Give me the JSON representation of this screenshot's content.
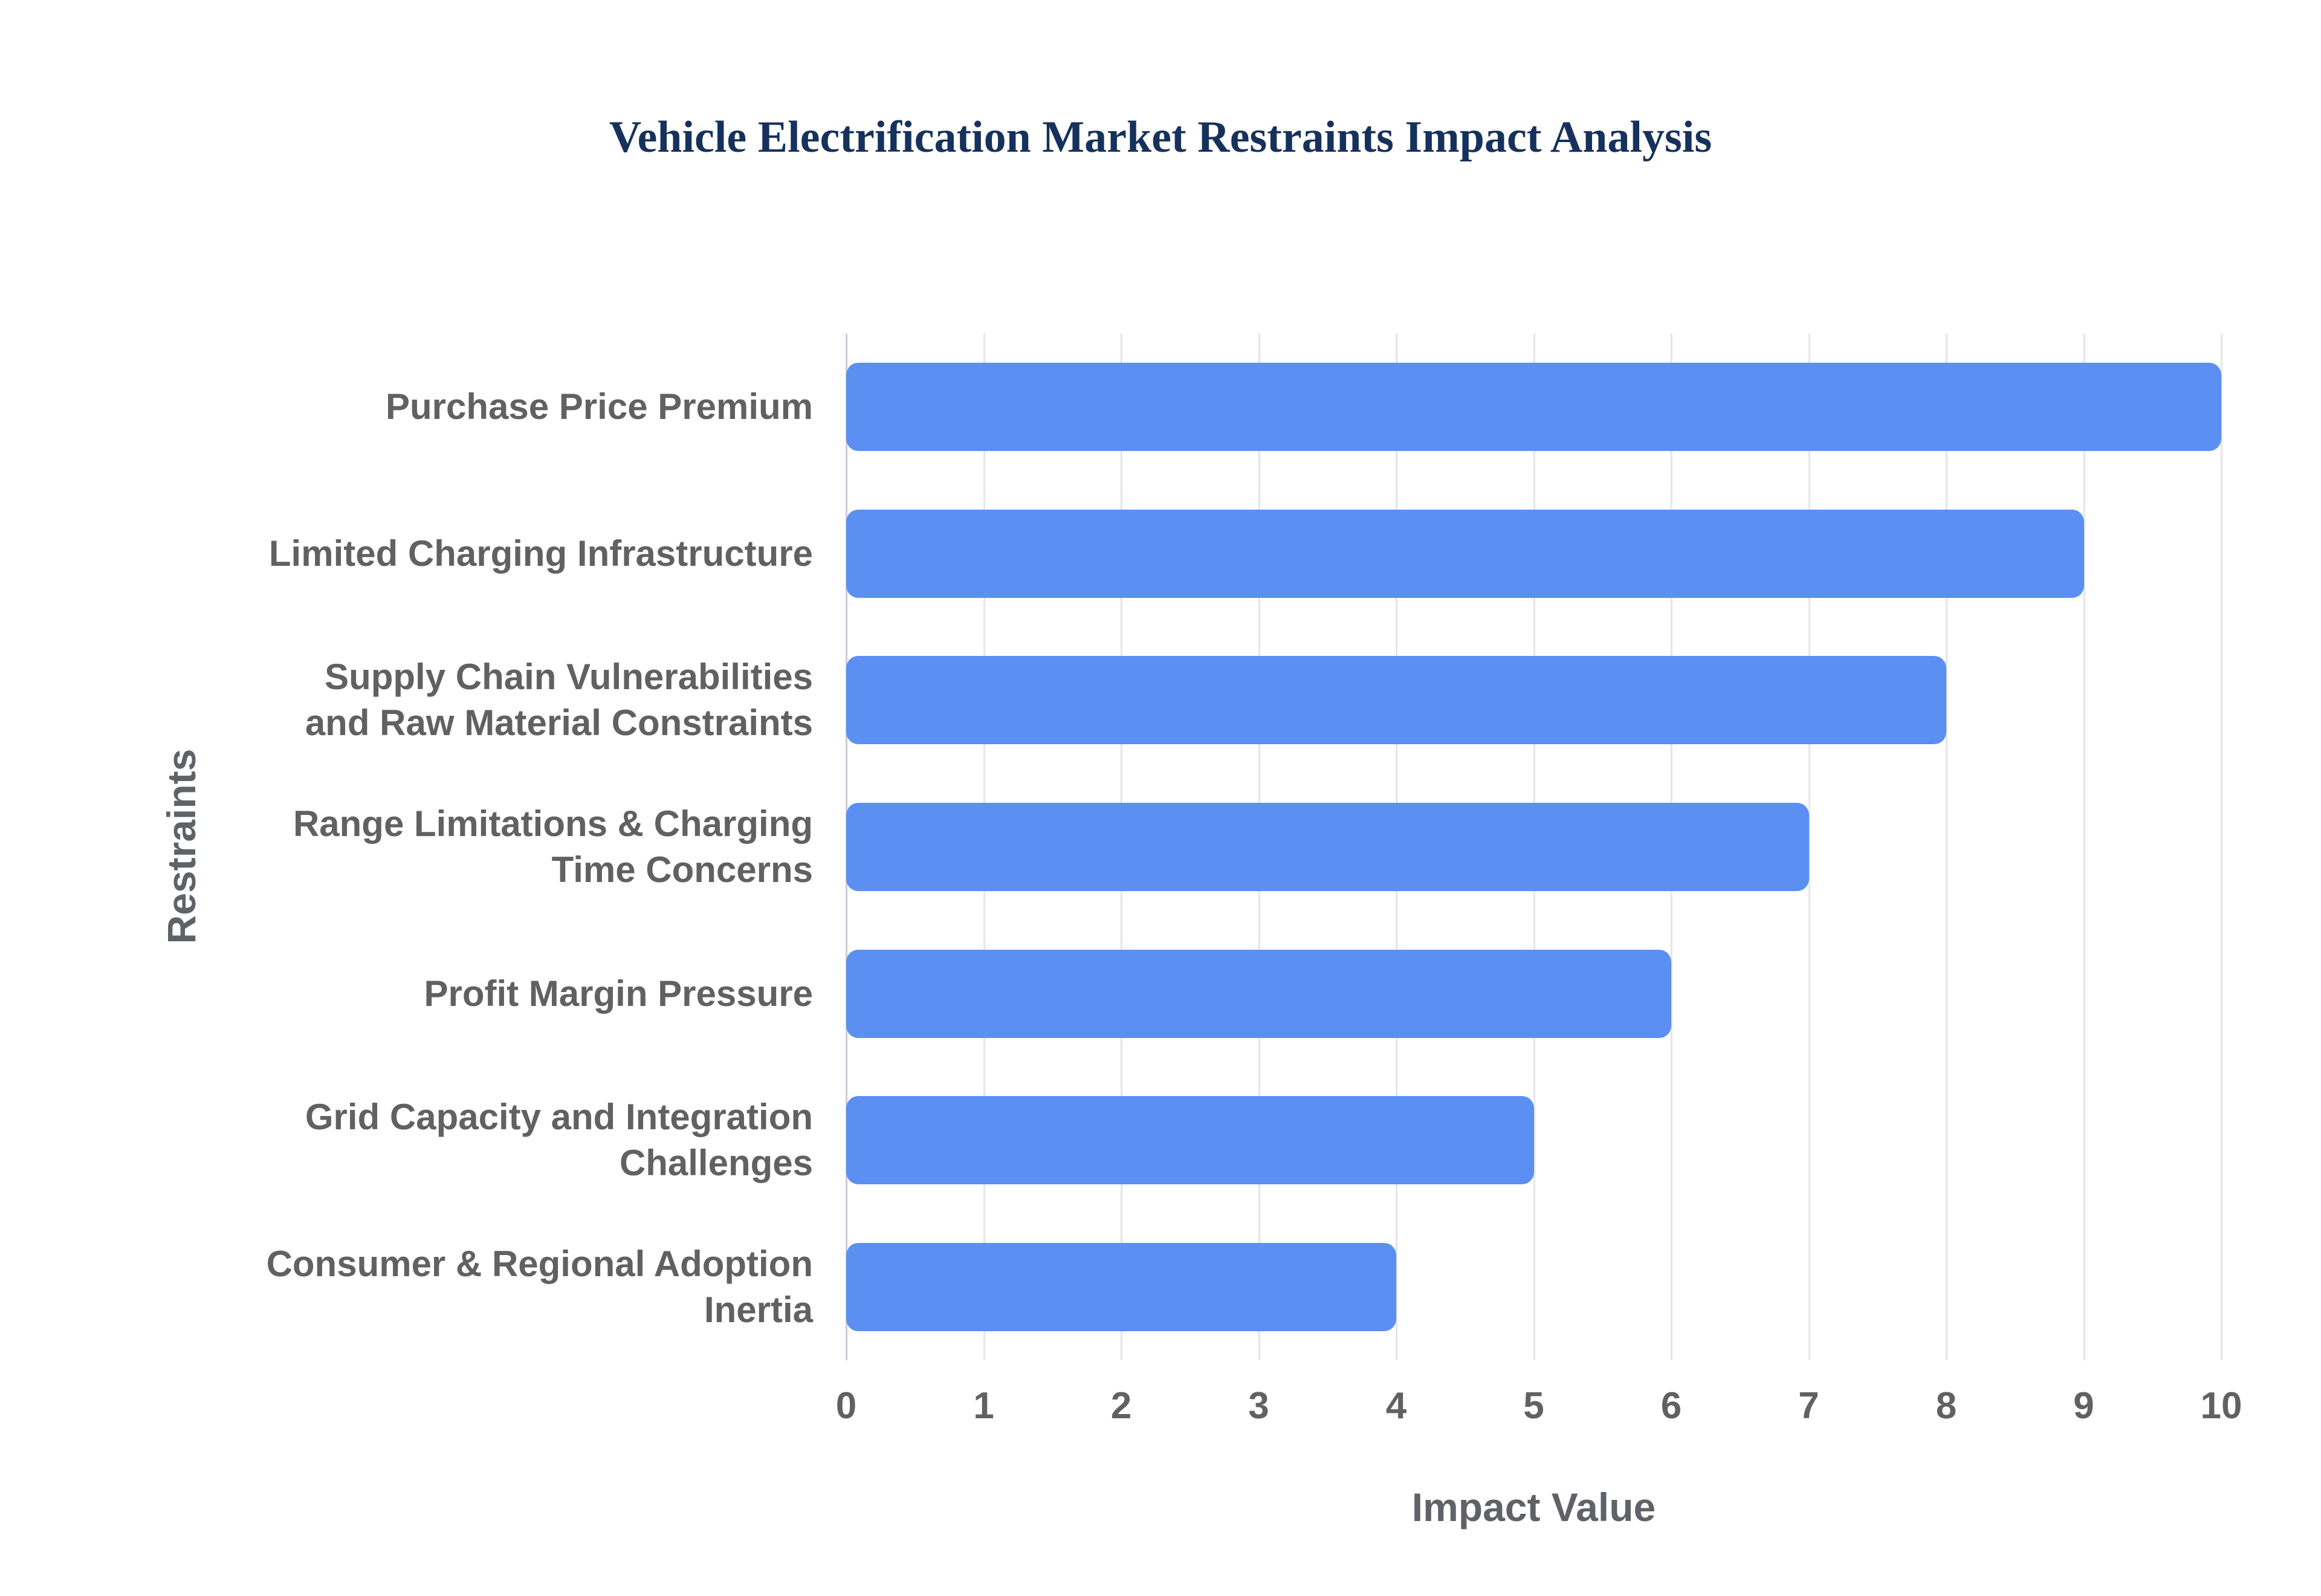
{
  "chart_data": {
    "type": "bar",
    "orientation": "horizontal",
    "title": "Vehicle Electrification Market Restraints Impact Analysis",
    "categories": [
      "Purchase Price Premium",
      "Limited Charging Infrastructure",
      "Supply Chain Vulnerabilities and Raw Material Constraints",
      "Range Limitations & Charging Time Concerns",
      "Profit Margin Pressure",
      "Grid Capacity and Integration Challenges",
      "Consumer & Regional Adoption Inertia"
    ],
    "values": [
      10,
      9,
      8,
      7,
      6,
      5,
      4
    ],
    "xlabel": "Impact Value",
    "ylabel": "Restraints",
    "xlim": [
      0,
      10
    ],
    "xticks": [
      0,
      1,
      2,
      3,
      4,
      5,
      6,
      7,
      8,
      9,
      10
    ],
    "grid": "vertical",
    "legend": "none",
    "bar_color": "#5b8ff2",
    "title_color": "#16325c",
    "axis_label_color": "#5f6368",
    "tick_label_color": "#616161",
    "gridline_color": "#e3e6ea"
  }
}
